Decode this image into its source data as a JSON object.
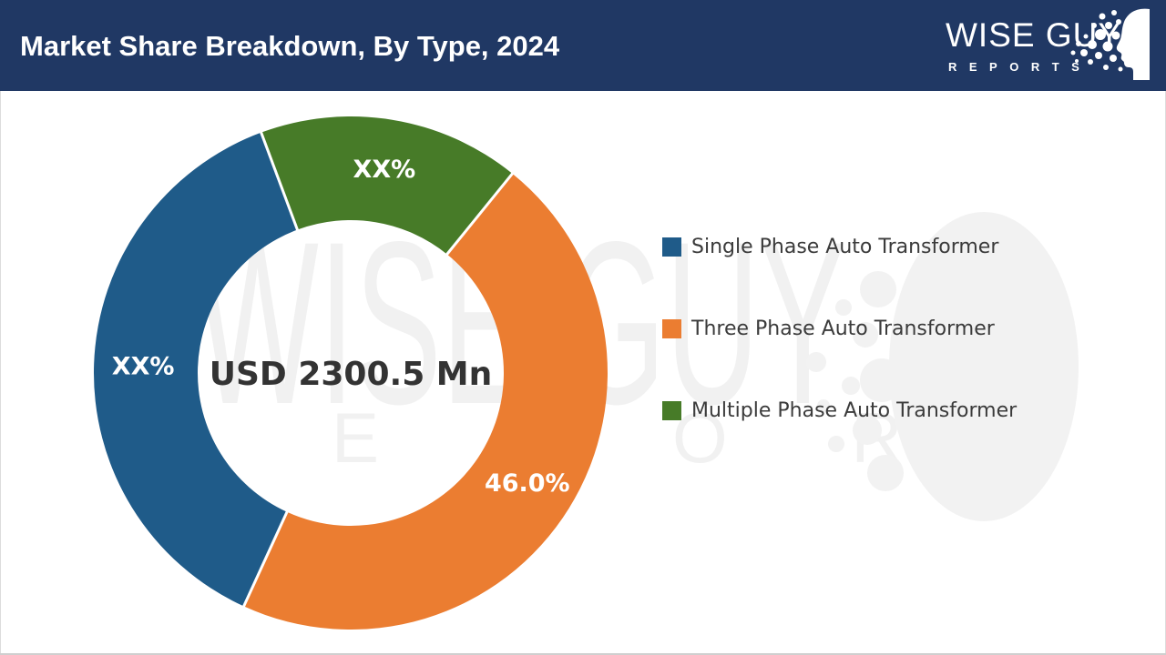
{
  "header": {
    "title": "Market Share Breakdown, By Type, 2024",
    "bg_color": "#203864",
    "logo": {
      "line1": "WISE GUY",
      "line2": "REPORTS"
    }
  },
  "chart_data": {
    "type": "pie",
    "subtype": "donut",
    "title": "Market Share Breakdown, By Type, 2024",
    "center_label": "USD 2300.5 Mn",
    "legend_position": "right",
    "start_angle": 110.4,
    "draw_order": [
      2,
      1,
      0
    ],
    "slices": [
      {
        "label": "Single Phase Auto Transformer",
        "value": 37.5,
        "display": "XX%",
        "color": "#1F5B89"
      },
      {
        "label": "Three Phase Auto Transformer",
        "value": 46.0,
        "display": "46.0%",
        "color": "#EB7D31"
      },
      {
        "label": "Multiple Phase Auto Transformer",
        "value": 16.5,
        "display": "XX%",
        "color": "#477B28"
      }
    ]
  },
  "watermark": {
    "line1": "WISE GUY",
    "line2": "R E P O R T S"
  }
}
